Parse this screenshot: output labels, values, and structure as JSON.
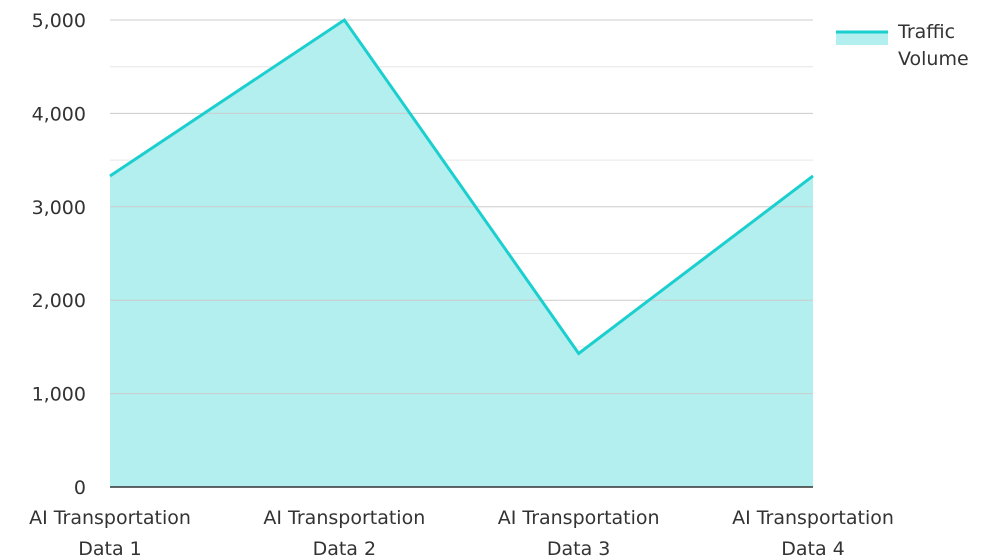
{
  "chart_data": {
    "type": "area",
    "categories": [
      [
        "AI Transportation",
        "Data 1"
      ],
      [
        "AI Transportation",
        "Data 2"
      ],
      [
        "AI Transportation",
        "Data 3"
      ],
      [
        "AI Transportation",
        "Data 4"
      ]
    ],
    "series": [
      {
        "name": [
          "Traffic",
          "Volume"
        ],
        "values": [
          3330,
          5000,
          1430,
          3330
        ],
        "line_color": "#1ccfcf",
        "fill_color": "#b2efee"
      }
    ],
    "ylim": [
      0,
      5000
    ],
    "y_ticks": [
      "0",
      "1,000",
      "2,000",
      "3,000",
      "4,000",
      "5,000"
    ],
    "y_tick_values": [
      0,
      1000,
      2000,
      3000,
      4000,
      5000
    ],
    "minor_grid_values": [
      500,
      1500,
      2500,
      3500,
      4500
    ],
    "grid": true,
    "grid_color": "#cccccc",
    "legend_position": "top-right"
  }
}
